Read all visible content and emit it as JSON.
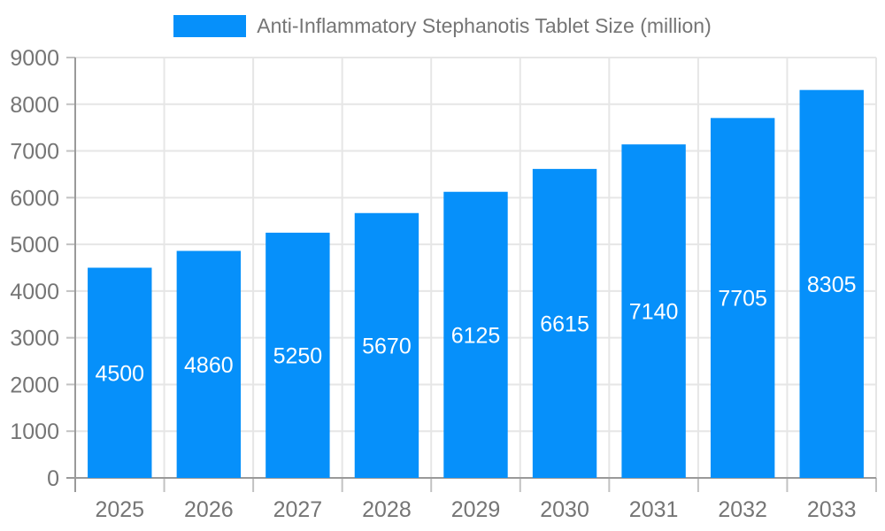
{
  "chart_data": {
    "type": "bar",
    "title": "Anti-Inflammatory Stephanotis Tablet Size (million)",
    "legend_entries": [
      {
        "label": "Anti-Inflammatory Stephanotis Tablet Size (million)",
        "color": "#0690FA"
      }
    ],
    "legend_position": "top-center",
    "categories": [
      "2025",
      "2026",
      "2027",
      "2028",
      "2029",
      "2030",
      "2031",
      "2032",
      "2033"
    ],
    "series": [
      {
        "name": "Anti-Inflammatory Stephanotis Tablet Size (million)",
        "values": [
          4500,
          4860,
          5250,
          5670,
          6125,
          6615,
          7140,
          7705,
          8305
        ]
      }
    ],
    "values": [
      4500,
      4860,
      5250,
      5670,
      6125,
      6615,
      7140,
      7705,
      8305
    ],
    "bar_value_labels": [
      "4500",
      "4860",
      "5250",
      "5670",
      "6125",
      "6615",
      "7140",
      "7705",
      "8305"
    ],
    "bar_value_label_placement": "inside-center",
    "xlabel": "",
    "ylabel": "",
    "ylim": [
      0,
      9000
    ],
    "ytick_step": 1000,
    "yticks": [
      0,
      1000,
      2000,
      3000,
      4000,
      5000,
      6000,
      7000,
      8000,
      9000
    ],
    "grid": true,
    "vertical_gridlines": true,
    "colors": {
      "bar": "#0690FA",
      "bar_label_text": "#ffffff",
      "axis_text": "#757575",
      "grid": "#e6e6e6",
      "tick": "#c2c2c2",
      "axis_line": "#9a9a9a",
      "background": "#ffffff"
    }
  }
}
